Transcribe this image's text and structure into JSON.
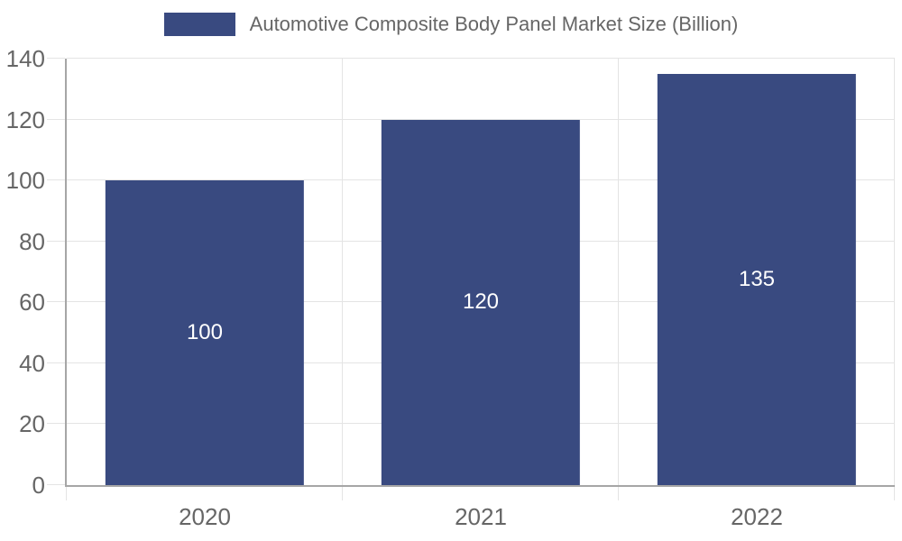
{
  "chart_data": {
    "type": "bar",
    "title": "Automotive Composite Body Panel Market Size (Billion)",
    "categories": [
      "2020",
      "2021",
      "2022"
    ],
    "values": [
      100,
      120,
      135
    ],
    "xlabel": "",
    "ylabel": "",
    "ylim": [
      0,
      140
    ],
    "yticks": [
      0,
      20,
      40,
      60,
      80,
      100,
      120,
      140
    ],
    "grid": true,
    "legend_position": "top-center",
    "bar_value_labels_inside": true,
    "bar_width_fraction": 0.72
  },
  "legend": {
    "label": "Automotive Composite Body Panel Market Size (Billion)"
  },
  "colors": {
    "bar": "#394a80",
    "bar_label_text": "#ffffff",
    "axis_text": "#666666",
    "legend_text": "#666666",
    "gridline": "#e4e4e4",
    "tick": "#e4e4e4",
    "axis_line": "#a6a6a6",
    "background": "#ffffff"
  }
}
